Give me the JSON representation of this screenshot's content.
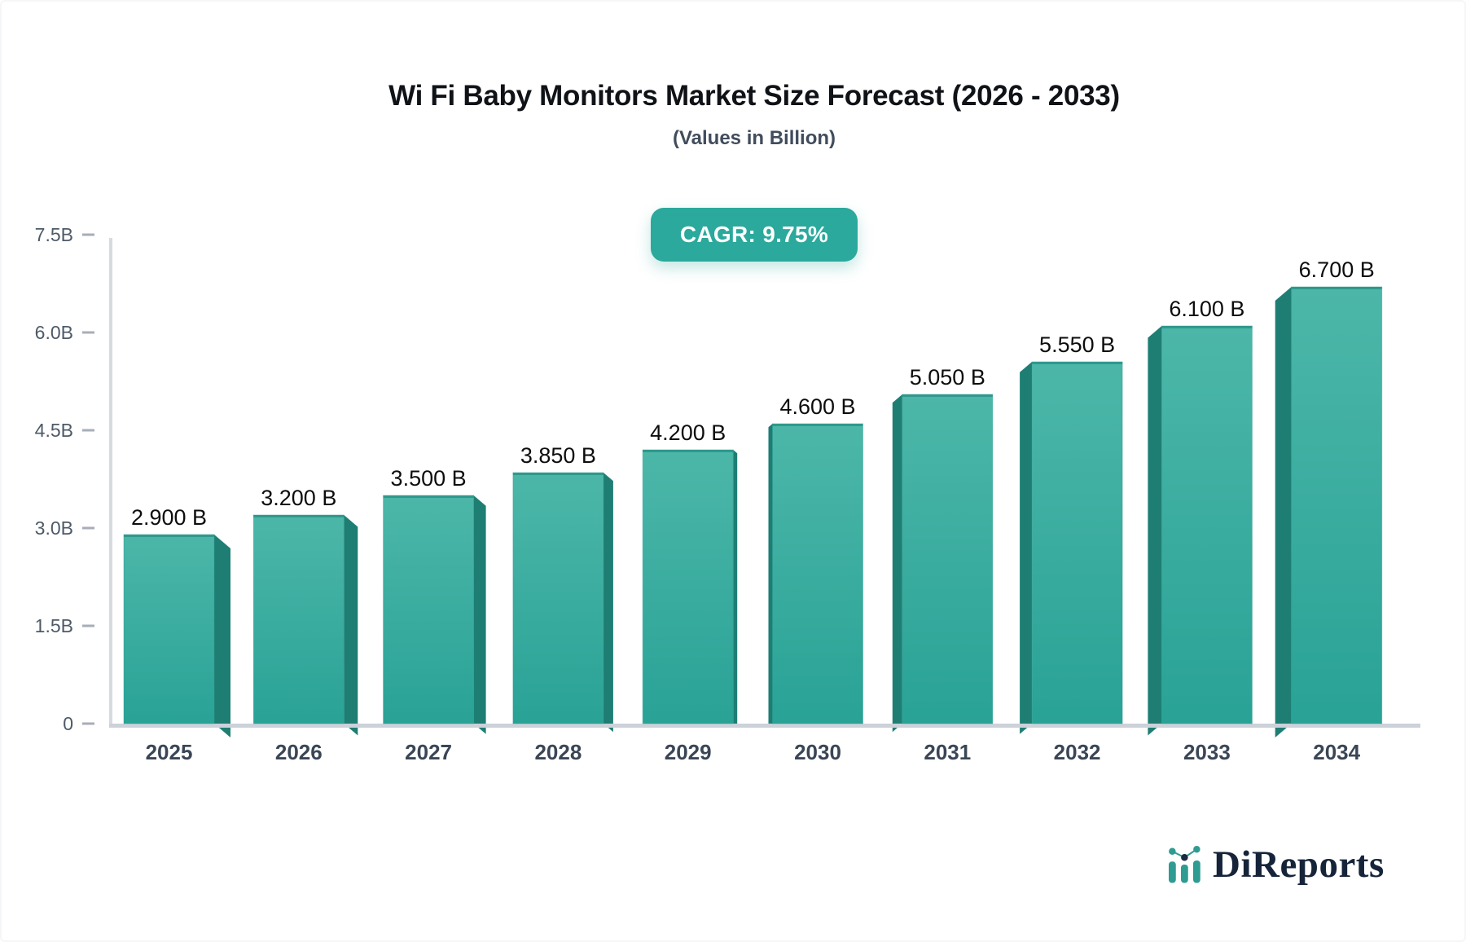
{
  "header": {
    "title": "Wi Fi Baby Monitors Market Size Forecast (2026 - 2033)",
    "subtitle": "(Values in Billion)",
    "cagr_badge": "CAGR: 9.75%"
  },
  "chart_data": {
    "type": "bar",
    "title": "Wi Fi Baby Monitors Market Size Forecast (2026 - 2033)",
    "subtitle": "(Values in Billion)",
    "xlabel": "",
    "ylabel": "",
    "categories": [
      "2025",
      "2026",
      "2027",
      "2028",
      "2029",
      "2030",
      "2031",
      "2032",
      "2033",
      "2034"
    ],
    "values": [
      2.9,
      3.2,
      3.5,
      3.85,
      4.2,
      4.6,
      5.05,
      5.55,
      6.1,
      6.7
    ],
    "value_labels": [
      "2.900 B",
      "3.200 B",
      "3.500 B",
      "3.850 B",
      "4.200 B",
      "4.600 B",
      "5.050 B",
      "5.550 B",
      "6.100 B",
      "6.700 B"
    ],
    "cagr": "CAGR: 9.75%",
    "ylim": [
      0,
      7.5
    ],
    "yticks": [
      {
        "v": 0,
        "label": "0"
      },
      {
        "v": 1.5,
        "label": "1.5B"
      },
      {
        "v": 3,
        "label": "3.0B"
      },
      {
        "v": 4.5,
        "label": "4.5B"
      },
      {
        "v": 6,
        "label": "6.0B"
      },
      {
        "v": 7.5,
        "label": "7.5B"
      }
    ],
    "grid": false,
    "legend": null,
    "bar_style": "3d-center-perspective",
    "colors": {
      "bar_face_top": "#4cb7a9",
      "bar_face_bottom": "#29a296",
      "bar_side": "#1e7e74",
      "bar_top_edge": "#2a9488",
      "bar_face_outline": "#2f9e92",
      "y_axis_line": "#d7dade",
      "baseline": "#ccd1da",
      "tick_mark": "#a7aeb8",
      "tick_label": "#4e5a68",
      "x_label": "#3a4656",
      "value_label": "#0d0d0d",
      "badge_bg": "#2aa99c",
      "badge_text": "#ffffff"
    }
  },
  "branding": {
    "logo_text": "DiReports",
    "logo_icon": "mini-bar-line-chart-icon",
    "logo_text_color": "#16243a",
    "logo_icon_color": "#2e9c92",
    "logo_icon_dot_color": "#1b2a40"
  }
}
